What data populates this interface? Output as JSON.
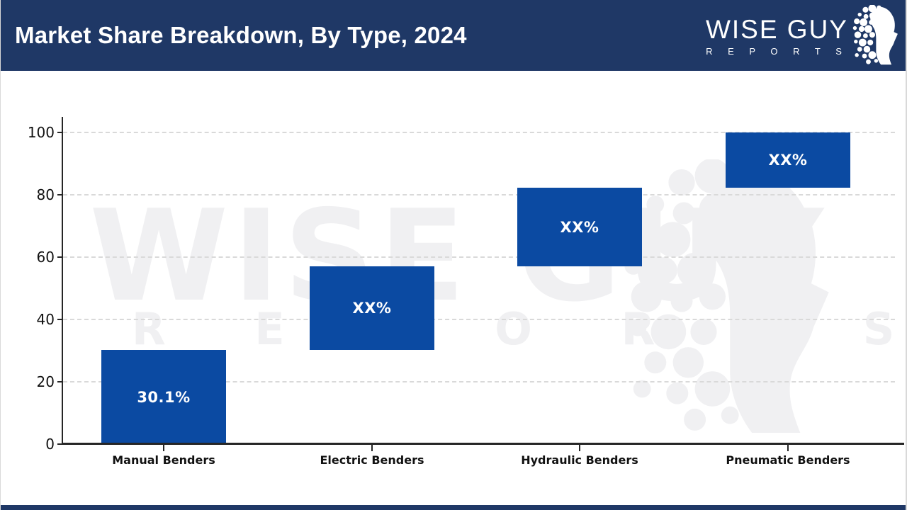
{
  "header": {
    "title": "Market Share Breakdown, By Type, 2024",
    "logo": {
      "line1": "WISE GUY",
      "line2": "R E P O R T S",
      "head_icon": "dotted-head-profile"
    }
  },
  "watermark": {
    "line1": "WISE GUY",
    "line2": "R E P O R T S",
    "head_icon": "dotted-head-profile"
  },
  "chart_data": {
    "type": "bar",
    "subtype": "waterfall",
    "title": "Market Share Breakdown, By Type, 2024",
    "categories": [
      "Manual Benders",
      "Electric Benders",
      "Hydraulic Benders",
      "Pneumatic Benders"
    ],
    "segments": [
      {
        "category": "Manual Benders",
        "start": 0,
        "end": 30.1,
        "label": "30.1%"
      },
      {
        "category": "Electric Benders",
        "start": 30.1,
        "end": 56.9,
        "label": "XX%"
      },
      {
        "category": "Hydraulic Benders",
        "start": 56.9,
        "end": 82.2,
        "label": "XX%"
      },
      {
        "category": "Pneumatic Benders",
        "start": 82.2,
        "end": 100,
        "label": "XX%"
      }
    ],
    "xlabel": "",
    "ylabel": "",
    "ylim": [
      0,
      100
    ],
    "yticks": [
      0,
      20,
      40,
      60,
      80,
      100
    ],
    "grid": "horizontal-dashed",
    "legend": "none"
  },
  "colors": {
    "header_bg": "#1f3866",
    "footer_bg": "#1f3866",
    "bar": "#0b4aa2",
    "bar_label": "#ffffff",
    "axis": "#262626",
    "grid": "#d9d9d9",
    "tick_text": "#111111",
    "watermark": "#f0f0f2",
    "logo_text": "#ffffff"
  }
}
